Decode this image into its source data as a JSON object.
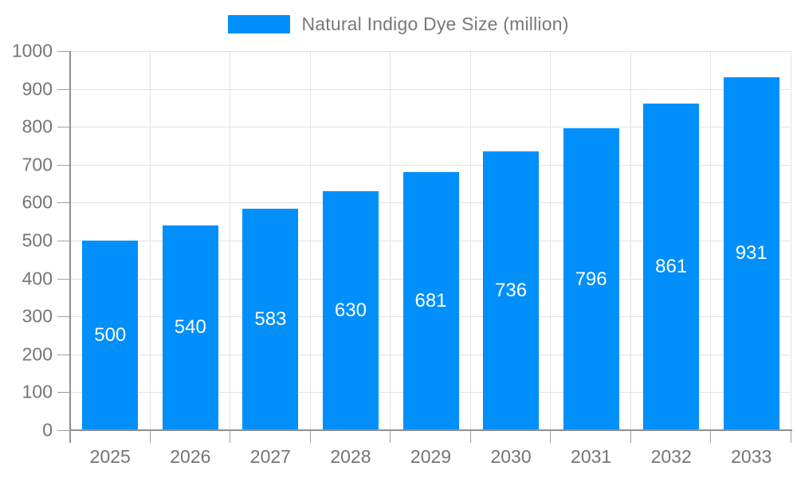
{
  "legend": {
    "label": "Natural Indigo Dye Size (million)"
  },
  "chart_data": {
    "type": "bar",
    "title": "Natural Indigo Dye Size (million)",
    "series_name": "Natural Indigo Dye Size (million)",
    "categories": [
      "2025",
      "2026",
      "2027",
      "2028",
      "2029",
      "2030",
      "2031",
      "2032",
      "2033"
    ],
    "values": [
      500,
      540,
      583,
      630,
      681,
      736,
      796,
      861,
      931
    ],
    "xlabel": "",
    "ylabel": "",
    "ylim": [
      0,
      1000
    ],
    "ytick_step": 100,
    "ytick_labels": [
      "0",
      "100",
      "200",
      "300",
      "400",
      "500",
      "600",
      "700",
      "800",
      "900",
      "1000"
    ],
    "grid": true,
    "legend_position": "top-center",
    "bar_value_labels_inside": true
  },
  "colors": {
    "bar": "#008FFB",
    "bar_value_text": "#ffffff",
    "axis_text": "#757575",
    "legend_text": "#787878",
    "gridline": "#e2e2e2",
    "axis_line": "#8f8f8f",
    "tick": "#9e9e9e",
    "background": "#ffffff"
  }
}
